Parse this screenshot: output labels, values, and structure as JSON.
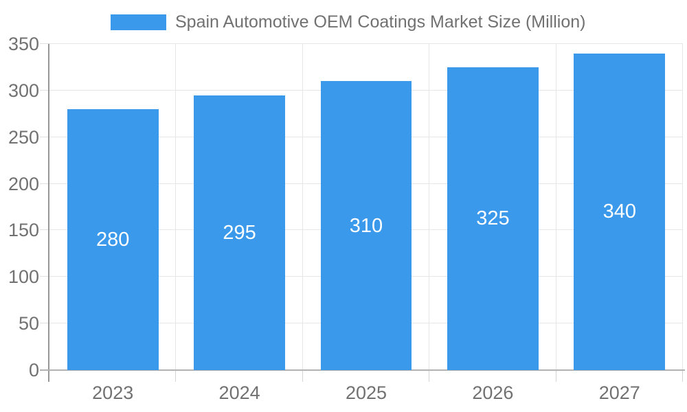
{
  "legend": {
    "label": "Spain Automotive OEM Coatings Market Size (Million)"
  },
  "chart_data": {
    "type": "bar",
    "title": "Spain Automotive OEM Coatings Market Size (Million)",
    "categories": [
      "2023",
      "2024",
      "2025",
      "2026",
      "2027"
    ],
    "values": [
      280,
      295,
      310,
      325,
      340
    ],
    "xlabel": "",
    "ylabel": "",
    "ylim": [
      0,
      350
    ],
    "ytick_step": 50,
    "ytick_labels": [
      "0",
      "50",
      "100",
      "150",
      "200",
      "250",
      "300",
      "350"
    ],
    "grid": true,
    "legend_position": "top",
    "colors": {
      "bar": "#3B99EC",
      "axis_text": "#717171",
      "value_label": "#ffffff",
      "gridline": "#e6e6e6",
      "y_tick": "#e0e0e0",
      "x_tick": "#d4d4d4",
      "y_axis_line": "#979797",
      "x_baseline": "#b2b2b2"
    }
  }
}
